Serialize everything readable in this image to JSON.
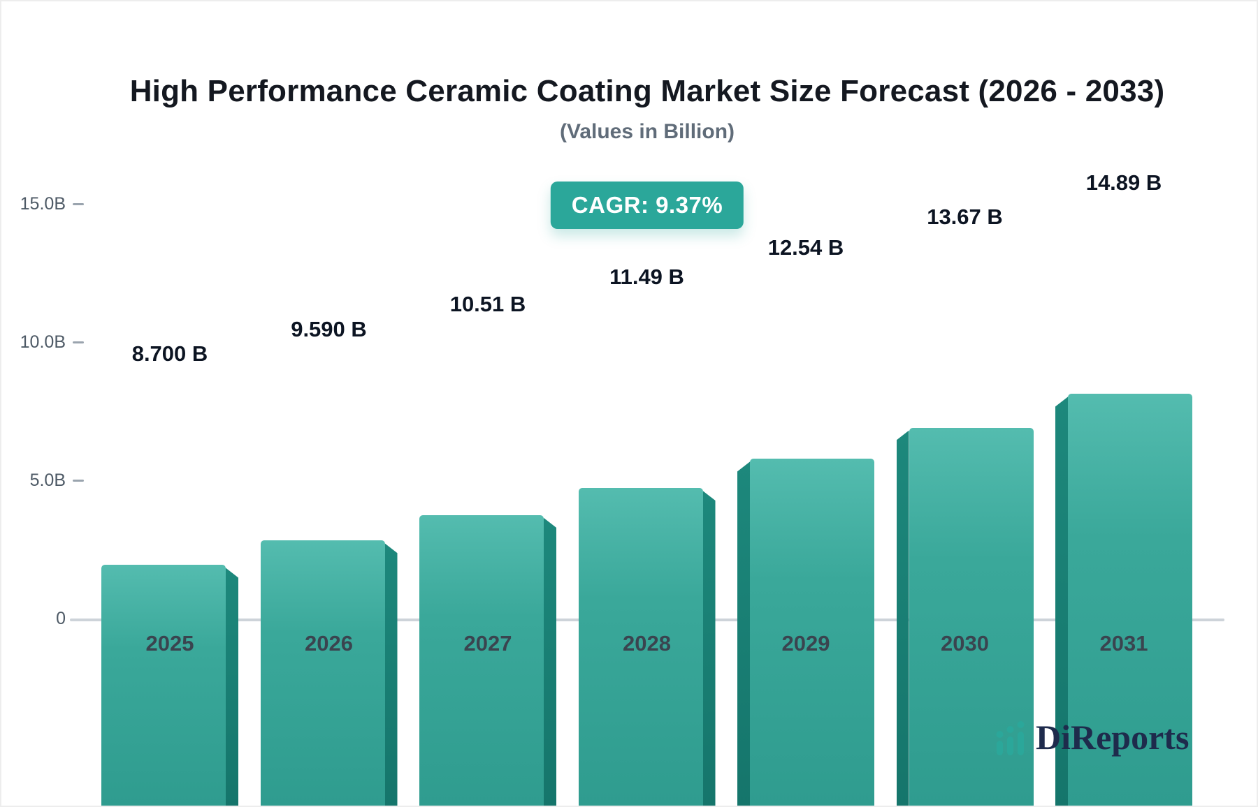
{
  "chart": {
    "title": "High Performance Ceramic Coating Market Size Forecast (2026 - 2033)",
    "subtitle": "(Values in Billion)",
    "cagr_badge": "CAGR: 9.37%"
  },
  "chart_data": {
    "type": "bar",
    "title": "High Performance Ceramic Coating Market Size Forecast (2026 - 2033)",
    "subtitle": "(Values in Billion)",
    "cagr_percent": 9.37,
    "unit": "Billion",
    "categories": [
      "2025",
      "2026",
      "2027",
      "2028",
      "2029",
      "2030",
      "2031"
    ],
    "values": [
      8.7,
      9.59,
      10.51,
      11.49,
      12.54,
      13.67,
      14.89
    ],
    "value_labels": [
      "8.700 B",
      "9.590 B",
      "10.51 B",
      "11.49 B",
      "12.54 B",
      "13.67 B",
      "14.89 B"
    ],
    "ylim": [
      0,
      15
    ],
    "y_ticks": [
      {
        "label": "15.0B",
        "value": 15
      },
      {
        "label": "10.0B",
        "value": 10
      },
      {
        "label": "5.0B",
        "value": 5
      },
      {
        "label": "0",
        "value": 0
      }
    ],
    "grid": false,
    "legend": false,
    "xlabel": "",
    "ylabel": ""
  },
  "branding": {
    "logo_text": "DiReports"
  },
  "colors": {
    "title_text": "#141820",
    "subtitle_text": "#606c79",
    "badge_bg": "#2ba79a",
    "bar_top": "#54bcaf",
    "bar_mid": "#3aa89a",
    "bar_bottom": "#2f9c8f",
    "bar_edge_top": "#1d887c",
    "bar_edge_bottom": "#15756b",
    "axis_line": "#cdd3d9",
    "tick_text": "#4e5a66",
    "value_text": "#0c1422",
    "year_text": "#3a444f",
    "logo_navy": "#1e2b4c",
    "logo_teal": "#2ba79a"
  }
}
